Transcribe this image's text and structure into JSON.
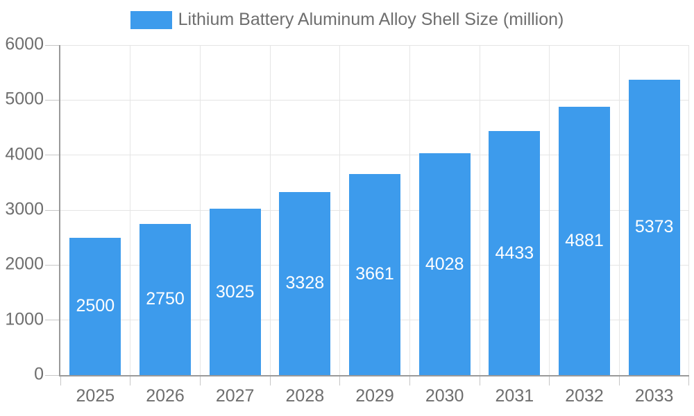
{
  "chart_data": {
    "type": "bar",
    "title": "Lithium Battery Aluminum Alloy Shell Size (million)",
    "categories": [
      "2025",
      "2026",
      "2027",
      "2028",
      "2029",
      "2030",
      "2031",
      "2032",
      "2033"
    ],
    "values": [
      2500,
      2750,
      3025,
      3328,
      3661,
      4028,
      4433,
      4881,
      5373
    ],
    "xlabel": "",
    "ylabel": "",
    "ylim": [
      0,
      6000
    ],
    "yticks": [
      0,
      1000,
      2000,
      3000,
      4000,
      5000,
      6000
    ],
    "grid": "on",
    "legend_position": "top-center",
    "colors": {
      "bar": "#3d9bec",
      "value_label": "#ffffff",
      "axis_text": "#6e6e6e",
      "grid_line": "#e5e5e5",
      "axis_line": "#999999",
      "tick": "#c6c6c6",
      "background": "#ffffff"
    }
  }
}
